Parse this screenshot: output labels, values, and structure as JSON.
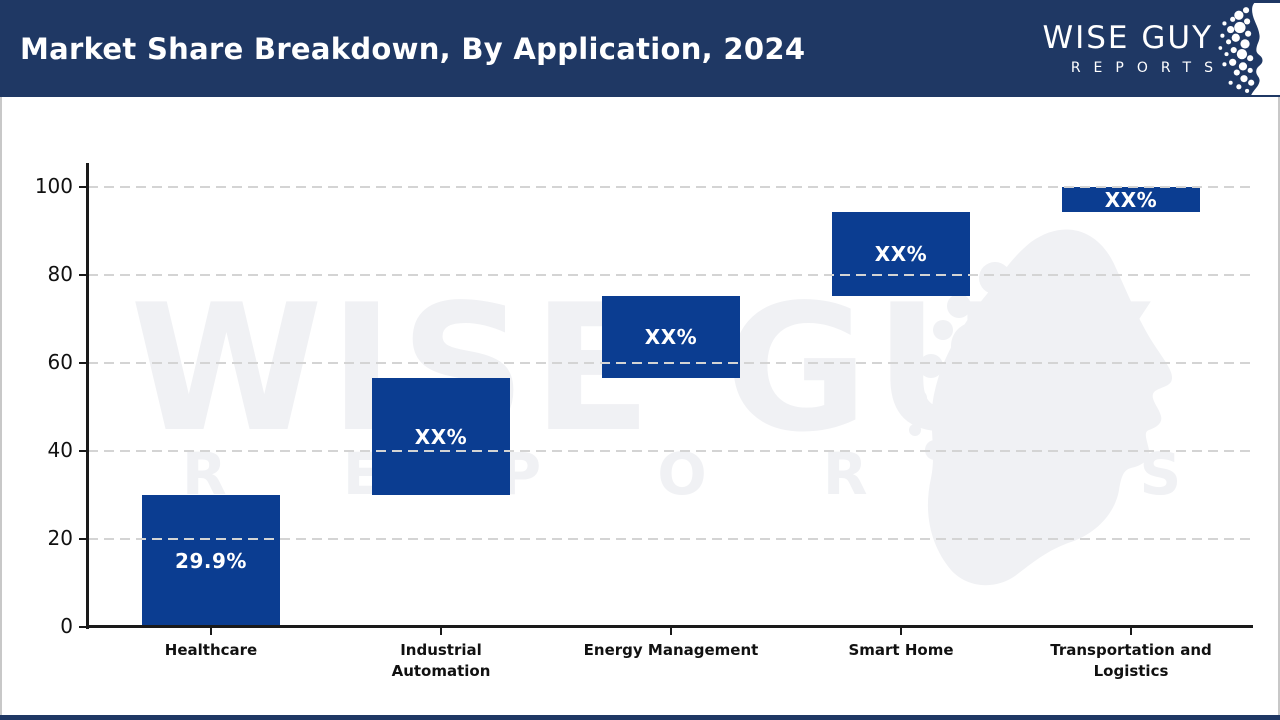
{
  "header": {
    "title": "Market Share Breakdown, By Application, 2024",
    "logo": {
      "name": "WISE GUY",
      "tagline": "REPORTS"
    }
  },
  "watermark": {
    "line1": "WISE GUY",
    "line2": "R E P O R T S"
  },
  "colors": {
    "header_bg": "#1f3864",
    "footer_bg": "#1f3864",
    "bar_fill": "#0b3d91",
    "bar_label_text": "#ffffff",
    "grid_line": "#d4d4d4",
    "axis_line": "#1a1a1a",
    "tick_label_text": "#111111",
    "watermark_gray": "#f0f1f4",
    "page_border": "#c8c8c8"
  },
  "chart_data": {
    "type": "bar",
    "subtype": "floating-waterfall",
    "title": "Market Share Breakdown, By Application, 2024",
    "categories": [
      "Healthcare",
      "Industrial Automation",
      "Energy Management",
      "Smart Home",
      "Transportation and Logistics"
    ],
    "category_label_lines": [
      [
        "Healthcare"
      ],
      [
        "Industrial",
        "Automation"
      ],
      [
        "Energy Management"
      ],
      [
        "Smart Home"
      ],
      [
        "Transportation and",
        "Logistics"
      ]
    ],
    "segments": [
      {
        "category": "Healthcare",
        "start": 0,
        "end": 29.9,
        "value_label": "29.9%"
      },
      {
        "category": "Industrial Automation",
        "start": 29.9,
        "end": 56.6,
        "value_label": "XX%"
      },
      {
        "category": "Energy Management",
        "start": 56.6,
        "end": 75.2,
        "value_label": "XX%"
      },
      {
        "category": "Smart Home",
        "start": 75.2,
        "end": 94.3,
        "value_label": "XX%"
      },
      {
        "category": "Transportation and Logistics",
        "start": 94.3,
        "end": 100,
        "value_label": "XX%"
      }
    ],
    "xlabel": "",
    "ylabel": "",
    "yticks": [
      0,
      20,
      40,
      60,
      80,
      100
    ],
    "ytick_labels": [
      "0",
      "20",
      "40",
      "60",
      "80",
      "100"
    ],
    "ylim": [
      0,
      105.5
    ],
    "grid": "horizontal-dashed",
    "legend": null
  }
}
